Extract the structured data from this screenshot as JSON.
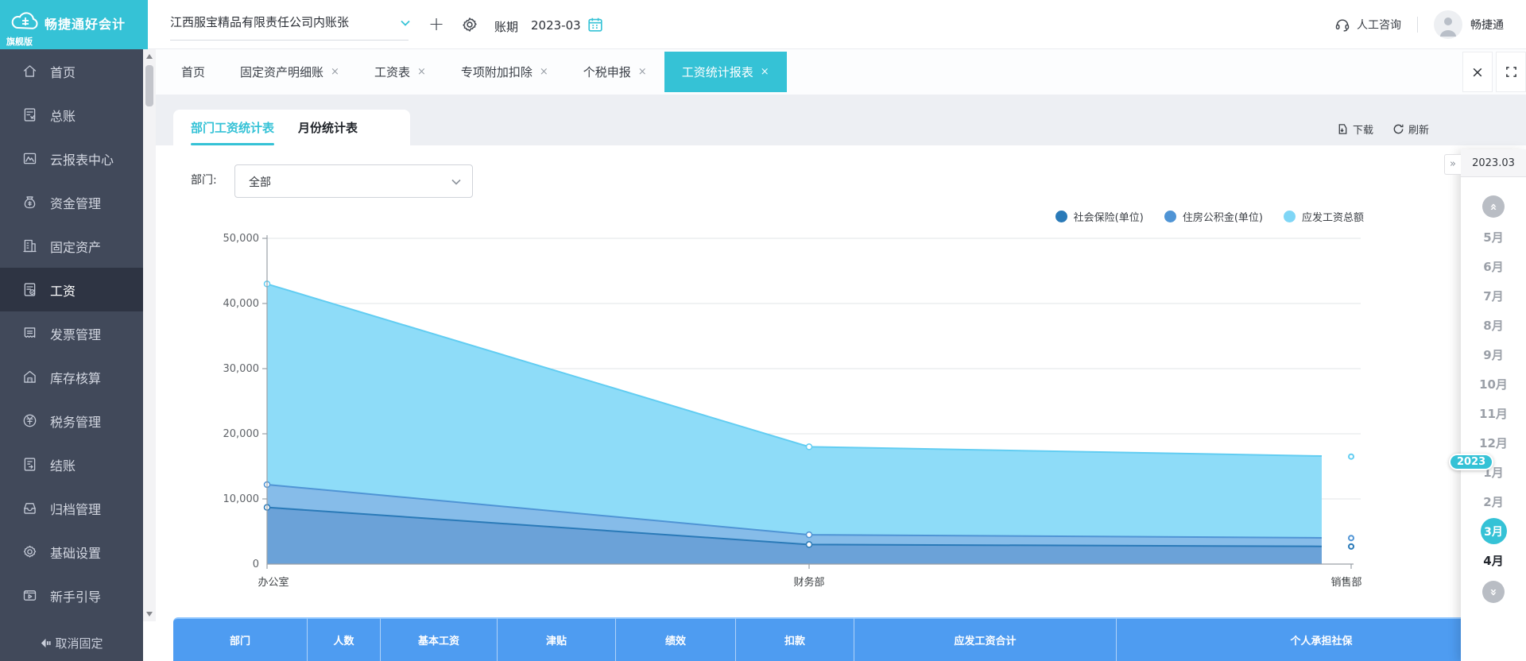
{
  "colors": {
    "accent": "#35c2d6",
    "sidebar_bg": "#41495a",
    "sidebar_active_bg": "#2e3443",
    "table_header_bg": "#4e9cf1"
  },
  "header": {
    "logo_title": "畅捷通好会计",
    "logo_subtitle": "旗舰版",
    "company": "江西服宝精品有限责任公司内账张",
    "period_label": "账期",
    "period_value": "2023-03",
    "support_label": "人工咨询",
    "user_name": "畅捷通"
  },
  "sidebar": {
    "active_index": 5,
    "items": [
      {
        "label": "首页",
        "icon": "home-icon"
      },
      {
        "label": "总账",
        "icon": "ledger-icon"
      },
      {
        "label": "云报表中心",
        "icon": "cloud-report-icon"
      },
      {
        "label": "资金管理",
        "icon": "funds-icon"
      },
      {
        "label": "固定资产",
        "icon": "fixed-assets-icon"
      },
      {
        "label": "工资",
        "icon": "salary-icon"
      },
      {
        "label": "发票管理",
        "icon": "invoice-icon"
      },
      {
        "label": "库存核算",
        "icon": "inventory-icon"
      },
      {
        "label": "税务管理",
        "icon": "tax-icon"
      },
      {
        "label": "结账",
        "icon": "closing-icon"
      },
      {
        "label": "归档管理",
        "icon": "archive-icon"
      },
      {
        "label": "基础设置",
        "icon": "settings-icon"
      },
      {
        "label": "新手引导",
        "icon": "guide-icon"
      }
    ],
    "unpin_label": "取消固定"
  },
  "tabs": {
    "active_index": 5,
    "items": [
      {
        "label": "首页",
        "closable": false
      },
      {
        "label": "固定资产明细账",
        "closable": true
      },
      {
        "label": "工资表",
        "closable": true
      },
      {
        "label": "专项附加扣除",
        "closable": true
      },
      {
        "label": "个税申报",
        "closable": true
      },
      {
        "label": "工资统计报表",
        "closable": true
      }
    ]
  },
  "report": {
    "subtabs": [
      "部门工资统计表",
      "月份统计表"
    ],
    "active_subtab": 0,
    "download_label": "下载",
    "refresh_label": "刷新",
    "filter_label": "部门:",
    "filter_value": "全部"
  },
  "chart_data": {
    "type": "area",
    "categories": [
      "办公室",
      "财务部",
      "销售部"
    ],
    "series": [
      {
        "name": "社会保险(单位)",
        "color": "#2a7ab8",
        "fill": "#6ba2d8",
        "values": [
          8700,
          3000,
          2700
        ]
      },
      {
        "name": "住房公积金(单位)",
        "color": "#4f94d5",
        "fill": "#86bce9",
        "values": [
          12200,
          4500,
          4000
        ]
      },
      {
        "name": "应发工资总额",
        "color": "#62cdf2",
        "fill": "#8edcf8",
        "values": [
          43000,
          18000,
          16500
        ]
      }
    ],
    "ylim": [
      0,
      50000
    ],
    "yticks": [
      "0",
      "10,000",
      "20,000",
      "30,000",
      "40,000",
      "50,000"
    ],
    "grid": true,
    "legend_position": "top-right"
  },
  "month_panel": {
    "collapse_glyph": "»",
    "title": "2023.03",
    "months_top": [
      "5月",
      "6月",
      "7月",
      "8月",
      "9月",
      "10月",
      "11月",
      "12月"
    ],
    "year_badge": "2023",
    "months_bottom": [
      "1月",
      "2月",
      "3月",
      "4月"
    ],
    "selected_month": "3月",
    "current_period_month": "4月"
  },
  "table": {
    "columns": [
      "部门",
      "人数",
      "基本工资",
      "津贴",
      "绩效",
      "扣款",
      "应发工资合计",
      "个人承担社保"
    ]
  }
}
